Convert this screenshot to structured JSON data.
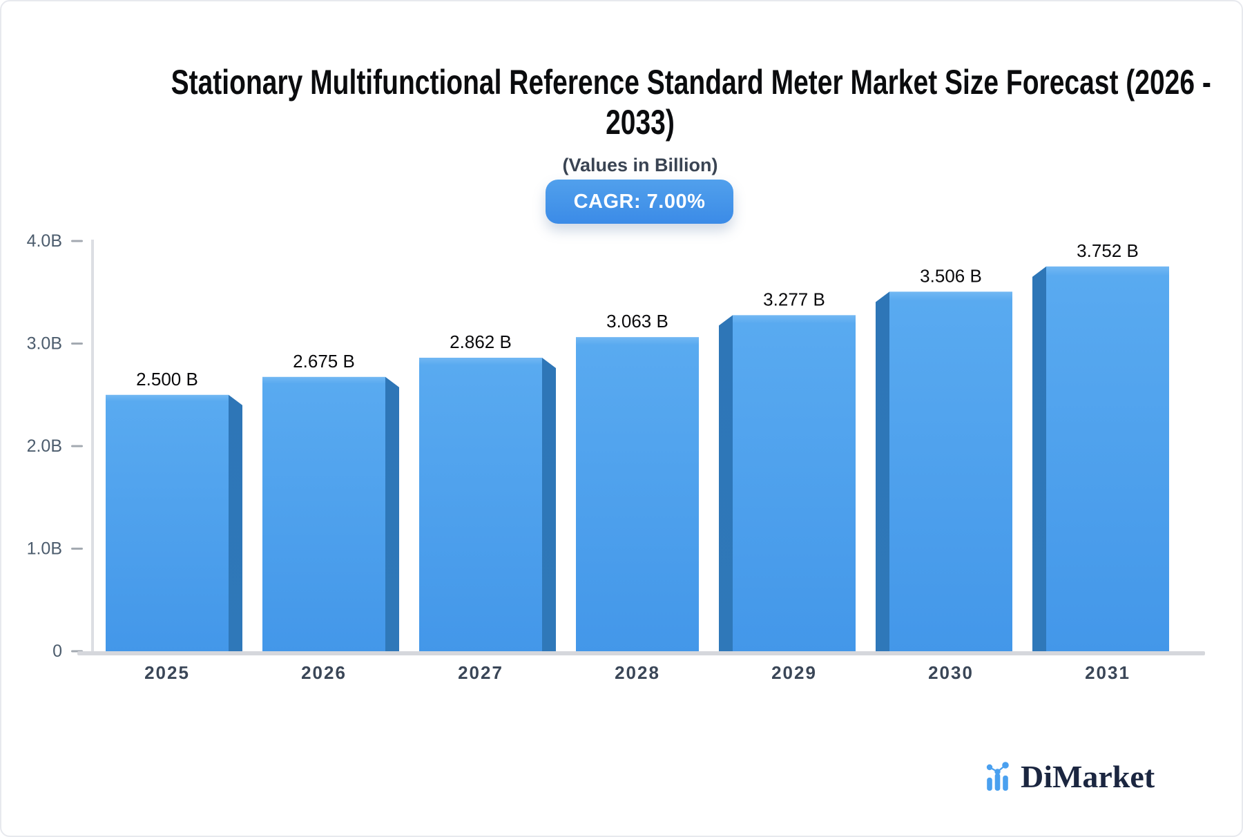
{
  "header": {
    "title_lines": [
      "Stationary Multifunctional Reference Standard Meter Market Size Forecast (2026 -",
      "2033)"
    ],
    "subtitle": "(Values in Billion)",
    "cagr_badge": "CAGR: 7.00%"
  },
  "brand": {
    "name": "DiMarket"
  },
  "chart_data": {
    "type": "bar",
    "title": "Stationary Multifunctional Reference Standard Meter Market Size Forecast (2026 - 2033)",
    "subtitle": "(Values in Billion)",
    "annotation": "CAGR: 7.00%",
    "categories": [
      "2025",
      "2026",
      "2027",
      "2028",
      "2029",
      "2030",
      "2031"
    ],
    "values": [
      2.5,
      2.675,
      2.862,
      3.063,
      3.277,
      3.506,
      3.752
    ],
    "value_labels": [
      "2.500 B",
      "2.675 B",
      "2.862 B",
      "3.063 B",
      "3.277 B",
      "3.506 B",
      "3.752 B"
    ],
    "xlabel": "",
    "ylabel": "",
    "ylim": [
      0,
      4
    ],
    "y_ticks": [
      {
        "value": 4,
        "label": "4.0B"
      },
      {
        "value": 3,
        "label": "3.0B"
      },
      {
        "value": 2,
        "label": "2.0B"
      },
      {
        "value": 1,
        "label": "1.0B"
      },
      {
        "value": 0,
        "label": "0"
      }
    ],
    "grid": false,
    "legend_position": "none",
    "bar_style": "3d-perspective",
    "colors": {
      "bar_face_top": "#60aff1",
      "bar_face_bottom": "#4397e9",
      "bar_side": "#2e76b7",
      "badge_blue": "#3d8de9",
      "axis_gray": "#d5d7dc"
    }
  }
}
